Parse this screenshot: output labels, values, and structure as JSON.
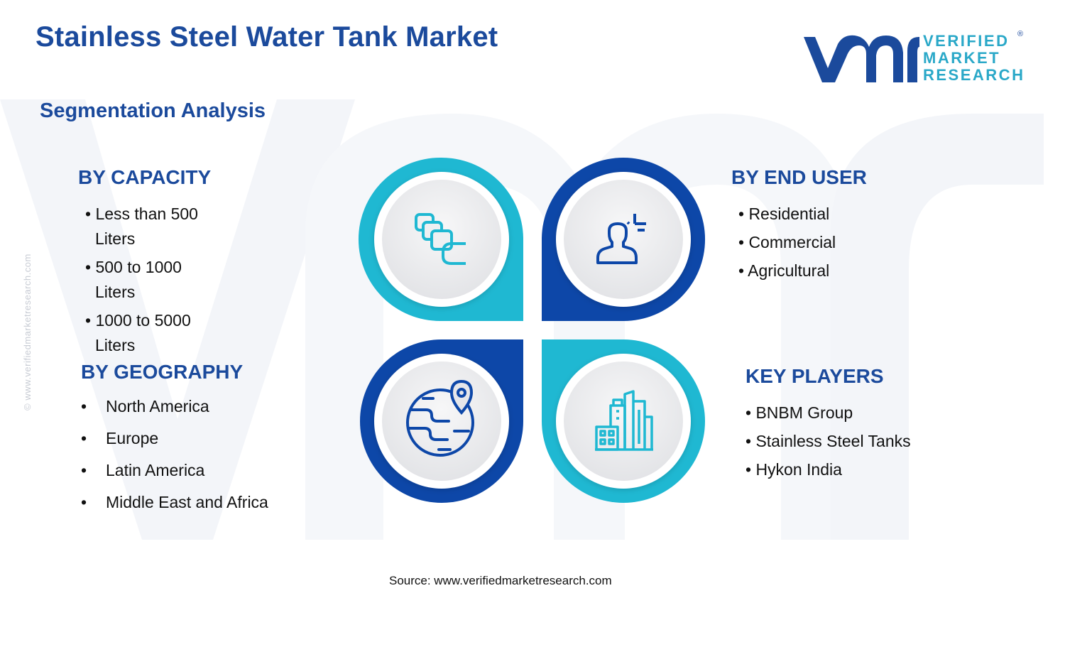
{
  "title": "Stainless Steel Water Tank Market",
  "subtitle": "Segmentation Analysis",
  "logo": {
    "line1": "VERIFIED",
    "line2": "MARKET",
    "line3": "RESEARCH",
    "reg": "®",
    "mark": "vmr"
  },
  "side_text": "© www.verifiedmarketresearch.com",
  "colors": {
    "dark_blue": "#1b4a9c",
    "cyan": "#1fb8d2",
    "ring_dark": "#0d47a8"
  },
  "capacity": {
    "heading": "BY CAPACITY",
    "items": [
      {
        "line1": "• Less than 500",
        "line2": "Liters"
      },
      {
        "line1": "• 500 to 1000",
        "line2": "Liters"
      },
      {
        "line1": "• 1000 to 5000",
        "line2": "Liters"
      }
    ]
  },
  "geography": {
    "heading": "BY GEOGRAPHY",
    "bullet": "•",
    "items": [
      "North America",
      "Europe",
      "Latin America",
      "Middle East and Africa"
    ]
  },
  "end_user": {
    "heading": "BY END USER",
    "items": [
      "• Residential",
      "• Commercial",
      "• Agricultural"
    ]
  },
  "key_players": {
    "heading": "KEY PLAYERS",
    "items": [
      "• BNBM Group",
      "• Stainless Steel Tanks",
      "• Hykon India"
    ]
  },
  "icons": [
    "capacity-blocks-icon",
    "user-icon",
    "globe-location-icon",
    "buildings-icon"
  ],
  "source": "Source: www.verifiedmarketresearch.com"
}
